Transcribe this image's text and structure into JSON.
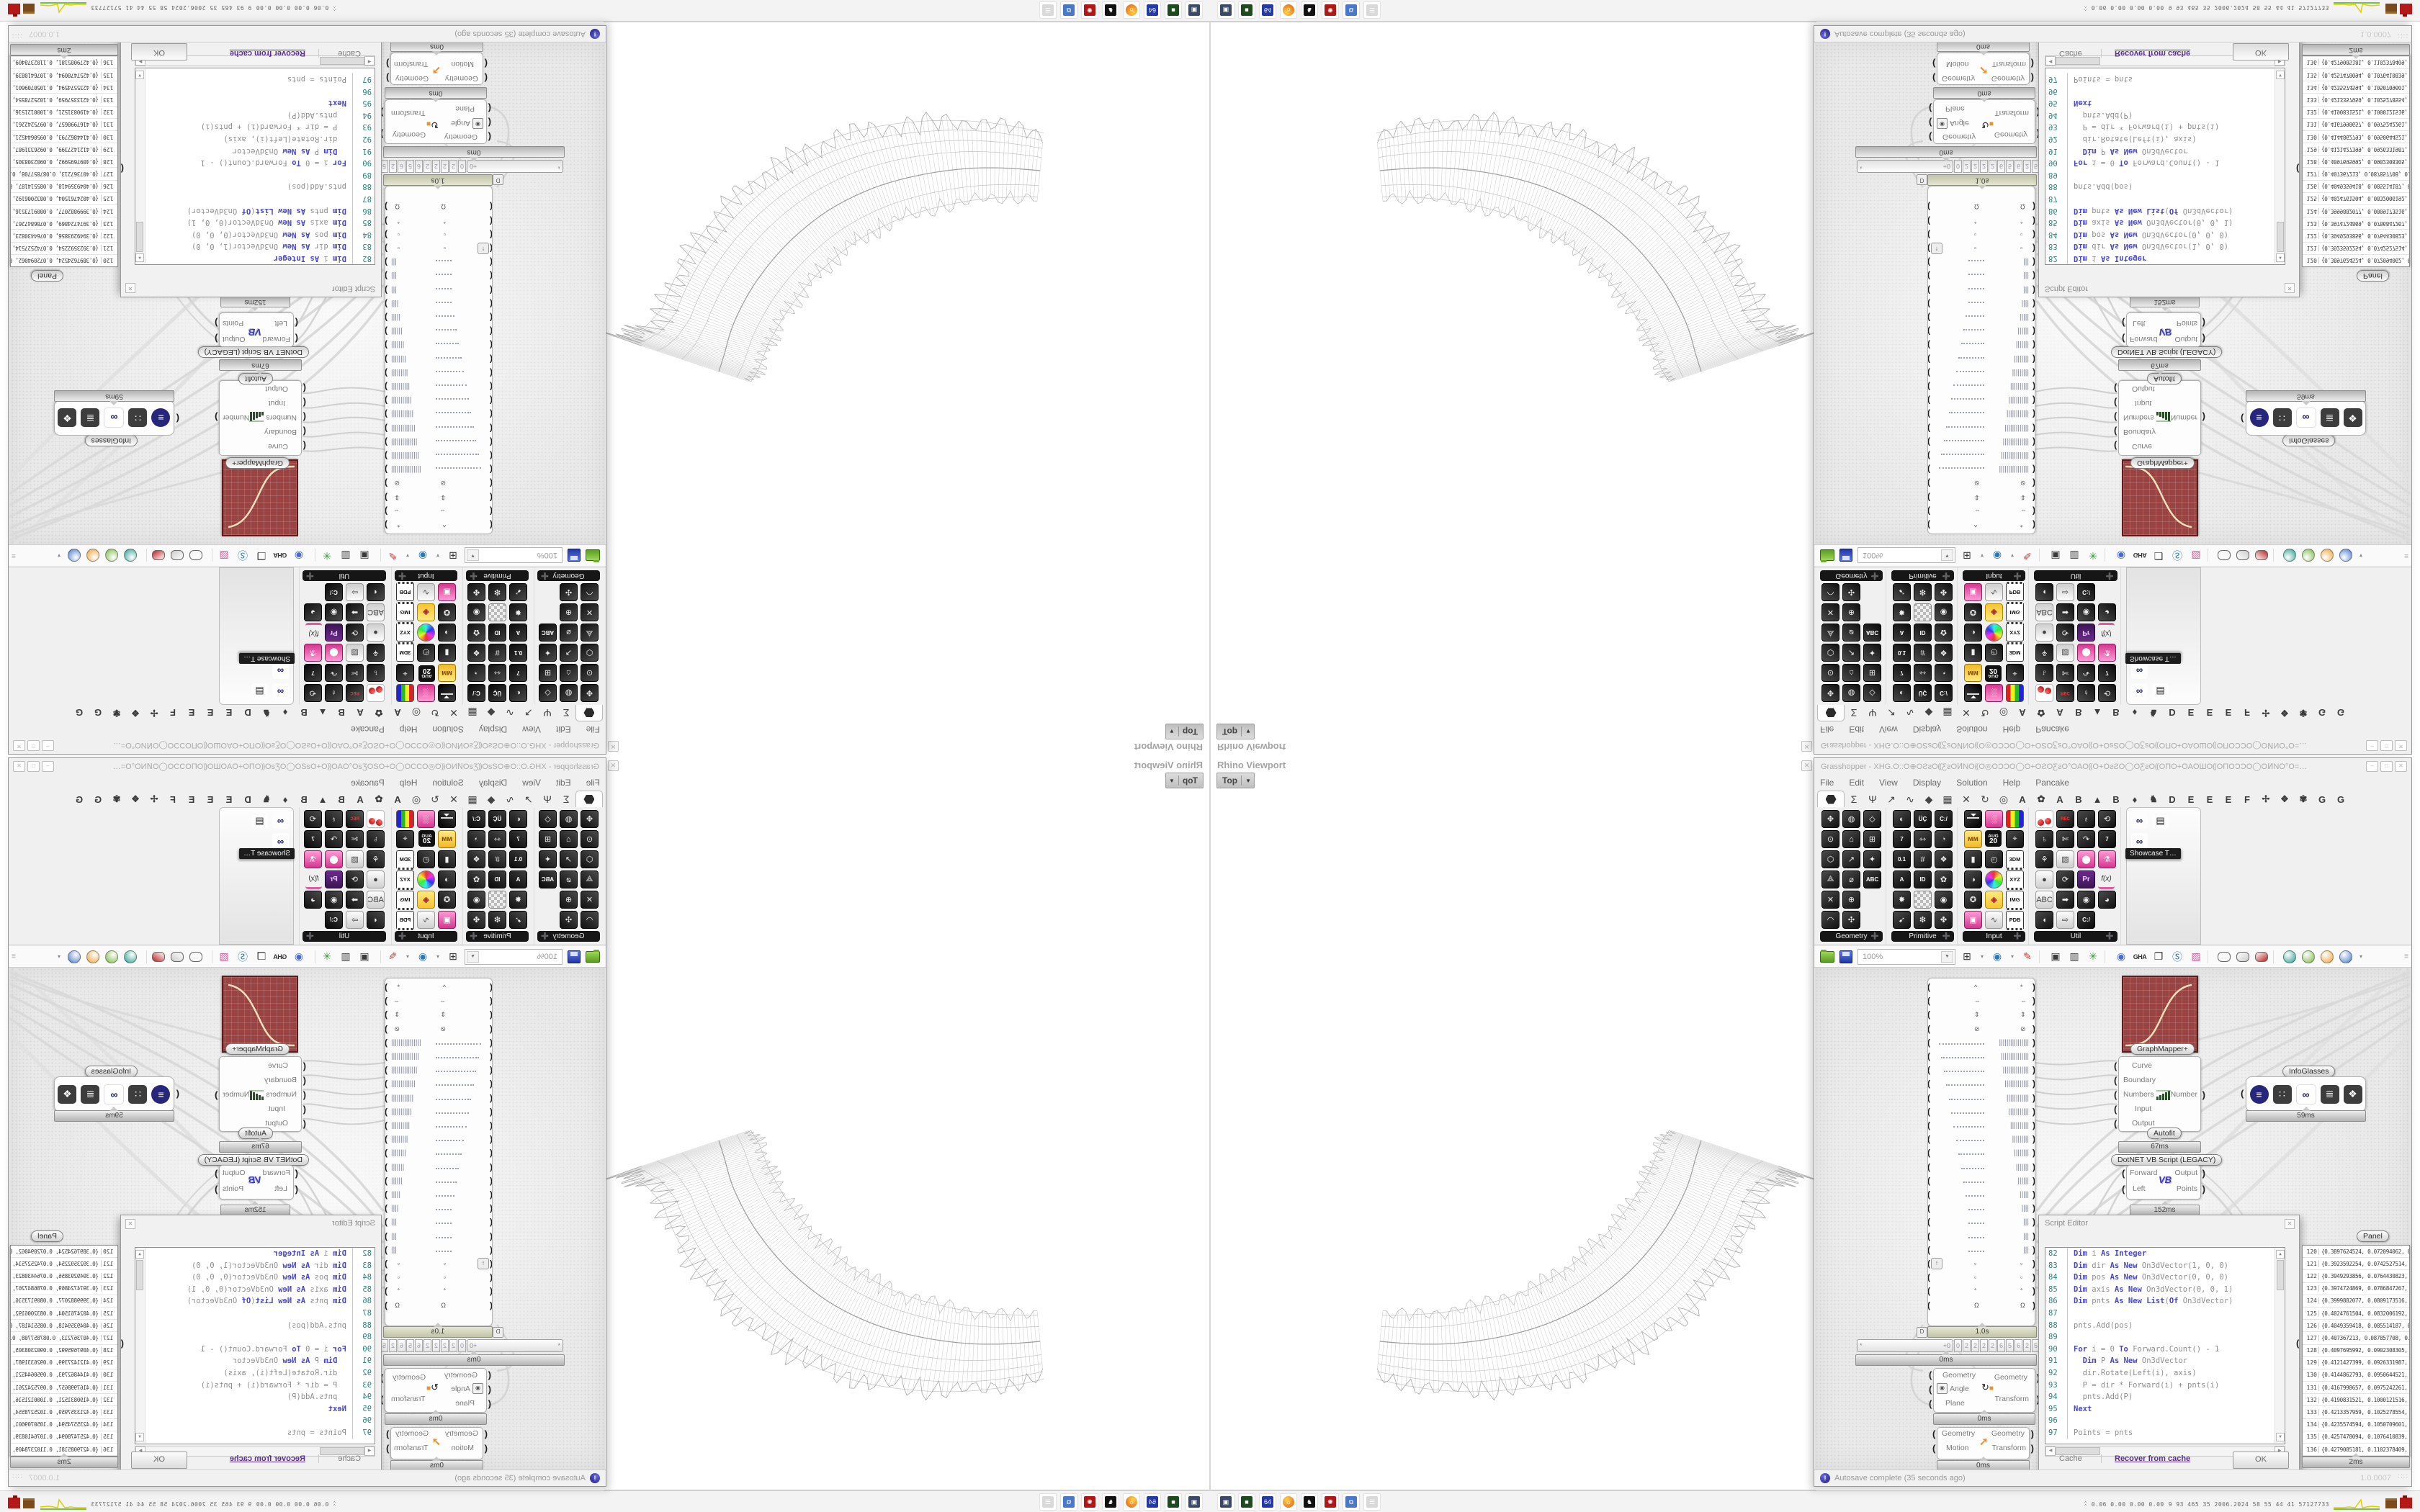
{
  "viewport": {
    "label": "Rhino Viewport",
    "tab": "Top"
  },
  "taskbar": {
    "icons": [
      "monitor-app",
      "green-cartridge-app",
      "floppy-64-app",
      "firefox",
      "black-white-app",
      "red-badge-app",
      "blue-window-app",
      "inactive-app"
    ],
    "stats": {
      "load": "0.06 0.00 0.00 0.00",
      "counts": "9    93   465   35   2006.2024  58    55    44    41  57127733"
    }
  },
  "grasshopper": {
    "title": "Grasshopper - XHG.O::O⊕OƧƨO⸨ƸƨOͶNO⸨O◎OƆƆO◯O+OƧOƸƨO°OΑO⸨O+OƨƧO◯OƸƨO⸨OΠO+OΑOШO⸨OΠOƆƆO◯OͶNO°O=…",
    "window_buttons": {
      "minimize": "–",
      "maximize": "□",
      "close": "✕"
    },
    "menu": [
      "File",
      "Edit",
      "View",
      "Display",
      "Solution",
      "Help",
      "Pancake"
    ],
    "tabs": [
      "params-hexagon",
      "Σ",
      "Ψ",
      "↗",
      "∿",
      "◆",
      "▦",
      "✕",
      "↻",
      "◎",
      "A",
      "✿",
      "A",
      "B",
      "▲",
      "B",
      "♦",
      "♞",
      "D",
      "E",
      "E",
      "E",
      "F",
      "✢",
      "❖",
      "✾",
      "G",
      "G"
    ],
    "palette": {
      "tooltip": "Showcase T…",
      "groups": [
        {
          "label": "Geometry",
          "icons": [
            [
              "dark",
              "✥"
            ],
            [
              "dark",
              "⊙"
            ],
            [
              "dark",
              "⬡"
            ],
            [
              "dark",
              "⟁"
            ],
            [
              "dark",
              "✕"
            ],
            [
              "dark",
              "◠"
            ],
            [
              "dark",
              "◍"
            ],
            [
              "dark",
              "⌂"
            ],
            [
              "dark",
              "↗"
            ],
            [
              "dark",
              "⌀"
            ],
            [
              "dark",
              "⊕"
            ],
            [
              "dark",
              "✣"
            ],
            [
              "dark",
              "◇"
            ],
            [
              "dark",
              "⊞"
            ],
            [
              "dark",
              "✦"
            ],
            [
              "chip",
              "ABC"
            ]
          ]
        },
        {
          "label": "Primitive",
          "icons": [
            [
              "dark",
              "◐"
            ],
            [
              "chip",
              "7"
            ],
            [
              "chip",
              "0.1"
            ],
            [
              "chip",
              "A"
            ],
            [
              "dark",
              "✸"
            ],
            [
              "dark",
              "➹"
            ],
            [
              "chip",
              "ÜÇ"
            ],
            [
              "dark",
              "⇿"
            ],
            [
              "dark",
              "#"
            ],
            [
              "chip",
              "ID"
            ],
            [
              "checker",
              ""
            ],
            [
              "dark",
              "❇"
            ],
            [
              "chip",
              "C:/"
            ],
            [
              "dark",
              "◔"
            ],
            [
              "dark",
              "❖"
            ],
            [
              "dark",
              "✿"
            ],
            [
              "dark",
              "◉"
            ],
            [
              "dark",
              "✤"
            ]
          ]
        },
        {
          "label": "Input",
          "icons": [
            [
              "slider",
              ""
            ],
            [
              "wave",
              "ᴍᴍ"
            ],
            [
              "dark",
              "▮"
            ],
            [
              "dark",
              "◑"
            ],
            [
              "dark",
              "✪"
            ],
            [
              "pink",
              "▣"
            ],
            [
              "pink",
              "░"
            ],
            [
              "cal",
              "AUG|20"
            ],
            [
              "dark",
              "◴"
            ],
            [
              "wheel",
              ""
            ],
            [
              "yellow",
              "◈"
            ],
            [
              "lite",
              "∿"
            ],
            [
              "stripes",
              ""
            ],
            [
              "dark",
              "⌖"
            ],
            [
              "file",
              "3DM"
            ],
            [
              "file",
              "XYZ"
            ],
            [
              "file",
              "IMG"
            ],
            [
              "file",
              "PDB"
            ]
          ]
        },
        {
          "label": "Util",
          "icons": [
            [
              "cherry",
              ""
            ],
            [
              "dark",
              "♄"
            ],
            [
              "dark",
              "⚘"
            ],
            [
              "lite",
              "●"
            ],
            [
              "lite",
              "ABC"
            ],
            [
              "dark",
              "◖"
            ],
            [
              "rec",
              "REC"
            ],
            [
              "dark",
              "✄"
            ],
            [
              "lite",
              "▧"
            ],
            [
              "dark",
              "⟳"
            ],
            [
              "dark",
              "➡"
            ],
            [
              "lite",
              "⇨"
            ],
            [
              "dark",
              "♁"
            ],
            [
              "dark",
              "↷"
            ],
            [
              "pink",
              "⬤"
            ],
            [
              "pr",
              "Pr"
            ],
            [
              "dark",
              "◉"
            ],
            [
              "chip",
              "C:/"
            ],
            [
              "dark",
              "⟲"
            ],
            [
              "chip",
              "7"
            ],
            [
              "pink",
              "⚗"
            ],
            [
              "fx",
              "f(x)"
            ],
            [
              "dark",
              "◕"
            ]
          ]
        }
      ],
      "showcase_icons": [
        [
          "glasses",
          "∞"
        ],
        [
          "board",
          "▤"
        ],
        [
          "glasses",
          "∞"
        ]
      ]
    },
    "toolbar": {
      "zoom": "100%",
      "gha": "GHA"
    },
    "canvas": {
      "slider_bank": {
        "symbol_rows": [
          [
            "^",
            "*"
          ],
          [
            "⇔",
            "⇔"
          ],
          [
            "⇕",
            "⇕"
          ],
          [
            "⊘",
            "⊘"
          ]
        ],
        "slider_row_count": 16,
        "tail_rows": [
          [
            "▫",
            "▫"
          ],
          [
            "▫",
            "▫"
          ],
          [
            "°",
            "°"
          ],
          [
            "Ω",
            "Ω"
          ]
        ],
        "time": "1.0s"
      },
      "digit_panel": {
        "prefix": "*",
        "value": "+0",
        "digits": [
          "0",
          "2",
          "2",
          "2",
          "2",
          "6",
          "5",
          "6",
          "2",
          "5",
          "0",
          "0"
        ],
        "time": "0ms"
      },
      "rotate": {
        "inputs": [
          "Geometry",
          "Angle",
          "Plane"
        ],
        "outputs": [
          "Geometry",
          "Transform"
        ],
        "time": "0ms"
      },
      "move": {
        "inputs": [
          "Geometry",
          "Motion"
        ],
        "outputs": [
          "Geometry",
          "Transform"
        ],
        "time": "0ms"
      },
      "graph_mapper": {
        "label": "GraphMapper+"
      },
      "autofit": {
        "label": "Autofit",
        "inputs": [
          "Curve",
          "Boundary",
          "Numbers",
          "Input",
          "Output"
        ],
        "outputs": [
          "Number"
        ],
        "time": "67ms"
      },
      "vb_script": {
        "label": "DotNET VB Script (LEGACY)",
        "inputs": [
          "Forward",
          "Left"
        ],
        "outputs": [
          "Output",
          "Points"
        ],
        "time": "152ms"
      },
      "infoglasses": {
        "label": "InfoGlasses",
        "time": "59ms",
        "icons": [
          "sphere-lines-icon",
          "grid-dots-icon",
          "glasses-i-icon",
          "drawer-icon",
          "puzzle-icon"
        ]
      }
    },
    "script_editor": {
      "title": "Script Editor",
      "buttons": {
        "cache": "Cache",
        "recover": "Recover from cache",
        "ok": "OK"
      },
      "lines": [
        {
          "n": "82",
          "t": "Dim i As Integer"
        },
        {
          "n": "83",
          "t": "Dim dir As New On3dVector(1, 0, 0)"
        },
        {
          "n": "84",
          "t": "Dim pos As New On3dVector(0, 0, 0)"
        },
        {
          "n": "85",
          "t": "Dim axis As New On3dVector(0, 0, 1)"
        },
        {
          "n": "86",
          "t": "Dim pnts As New List(Of On3dVector)"
        },
        {
          "n": "87",
          "t": ""
        },
        {
          "n": "88",
          "t": "pnts.Add(pos)"
        },
        {
          "n": "89",
          "t": ""
        },
        {
          "n": "90",
          "t": "For i = 0 To Forward.Count() - 1"
        },
        {
          "n": "91",
          "t": "  Dim P As New On3dVector"
        },
        {
          "n": "92",
          "t": "  dir.Rotate(Left(i), axis)"
        },
        {
          "n": "93",
          "t": "  P = dir * Forward(i) + pnts(i)"
        },
        {
          "n": "94",
          "t": "  pnts.Add(P)"
        },
        {
          "n": "95",
          "t": "Next"
        },
        {
          "n": "96",
          "t": ""
        },
        {
          "n": "97",
          "t": "Points = pnts"
        }
      ]
    },
    "panel": {
      "label": "Panel",
      "time": "2ms",
      "rows": [
        {
          "i": "120",
          "v": "{0.3897624524, 0.072094062, 0.0}"
        },
        {
          "i": "121",
          "v": "{0.3923592254, 0.0742527514, 0.0}"
        },
        {
          "i": "122",
          "v": "{0.3949293856, 0.0764430823, 0.0}"
        },
        {
          "i": "123",
          "v": "{0.3974724869, 0.0786847267, 0.0}"
        },
        {
          "i": "124",
          "v": "{0.3999882077, 0.0809173516, 0.0}"
        },
        {
          "i": "125",
          "v": "{0.4024761504, 0.0832006192, 0.0}"
        },
        {
          "i": "126",
          "v": "{0.4049359418, 0.085514187, 0.0}"
        },
        {
          "i": "127",
          "v": "{0.407367213, 0.087857708, 0.0}"
        },
        {
          "i": "128",
          "v": "{0.4097695992, 0.0902308305, 0.0}"
        },
        {
          "i": "129",
          "v": "{0.4121427399, 0.0926331987, 0.0}"
        },
        {
          "i": "130",
          "v": "{0.4144862793, 0.0950644521, 0.0}"
        },
        {
          "i": "131",
          "v": "{0.4167998657, 0.0975242261, 0.0}"
        },
        {
          "i": "132",
          "v": "{0.4190831521, 0.1000121516, 0.0}"
        },
        {
          "i": "133",
          "v": "{0.4213357959, 0.1025278554, 0.0}"
        },
        {
          "i": "134",
          "v": "{0.4235574594, 0.1050709601, 0.0}"
        },
        {
          "i": "135",
          "v": "{0.4257478094, 0.1076410839, 0.0}"
        },
        {
          "i": "136",
          "v": "{0.4279085181, 0.1102378409, 0.0}"
        },
        {
          "i": "137",
          "v": "{0.4300332629, 0.1128808404, 0.0}"
        }
      ]
    },
    "status": {
      "autosave": "Autosave complete (35 seconds ago)",
      "version": "1.0.0007"
    }
  }
}
